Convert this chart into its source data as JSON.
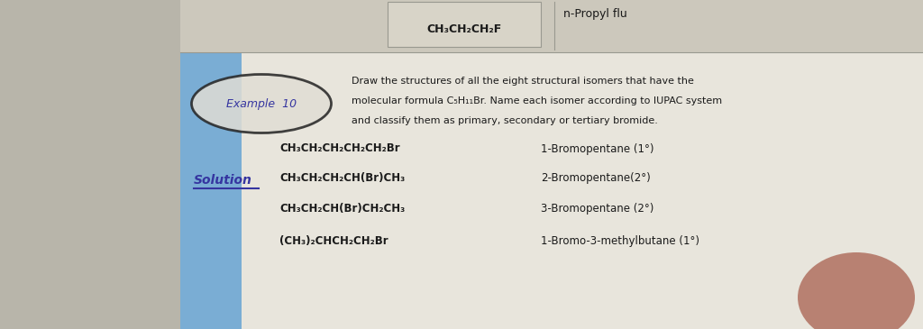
{
  "bg_color": "#c8c5b8",
  "page_bg": "#d8d4c8",
  "white_page": "#e8e5dc",
  "blue_sidebar_color": "#7aadd4",
  "title_top_left": "CH₃CH₂CH₂F",
  "title_top_right": "n-Propyl flu",
  "example_label": "Example  10",
  "question_line1": "Draw the structures of all the eight structural isomers that have the",
  "question_line2": "molecular formula C₅H₁₁Br. Name each isomer according to IUPAC system",
  "question_line3": "and classify them as primary, secondary or tertiary bromide.",
  "solution_label": "Solution",
  "solution_color": "#3535a0",
  "structures": [
    "CH₃CH₂CH₂CH₂CH₂Br",
    "CH₃CH₂CH₂CH(Br)CH₃",
    "CH₃CH₂CH(Br)CH₂CH₃",
    "(CH₃)₂CHCH₂CH₂Br"
  ],
  "names": [
    "1-Bromopentane (1°)",
    "2-Bromopentane(2°)",
    "3-Bromopentane (2°)",
    "1-Bromo-3-methylbutane (1°)"
  ],
  "structure_color": "#1a1a1a",
  "name_color": "#1a1a1a",
  "top_bar_color": "#ccc8bc",
  "finger_color": "#b07060"
}
